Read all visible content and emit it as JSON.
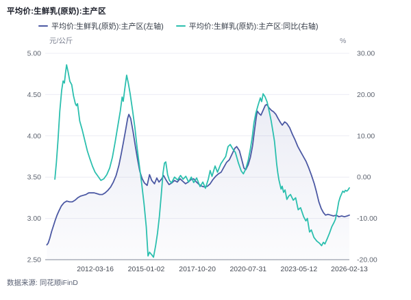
{
  "title": "平均价:生鲜乳(原奶):主产区",
  "legend": [
    {
      "label": "平均价:生鲜乳(原奶):主产区(左轴)",
      "color": "#4b58a3"
    },
    {
      "label": "平均价:生鲜乳(原奶):主产区:同比(右轴)",
      "color": "#2bbfae"
    }
  ],
  "footer": {
    "source_label": "数据来源: 同花顺iFinD"
  },
  "colors": {
    "price_line": "#4b58a3",
    "yoy_line": "#2bbfae",
    "grid_line": "#ececf4",
    "axis_line": "#a9adb9",
    "area_fill_top": "rgba(77,90,166,0.14)",
    "area_fill_bottom": "rgba(77,90,166,0.02)"
  },
  "chart_data": {
    "type": "line",
    "title": "平均价:生鲜乳(原奶):主产区",
    "grid": true,
    "legend_position": "top",
    "left_axis": {
      "unit": "元/公斤",
      "min": 2.5,
      "max": 5.0,
      "ticks": [
        "5.00",
        "4.50",
        "4.00",
        "3.50",
        "3.00",
        "2.50"
      ]
    },
    "right_axis": {
      "unit": "%",
      "min": -20,
      "max": 30,
      "ticks": [
        "30.00",
        "20.00",
        "10.00",
        "0.00",
        "-10.00",
        "-20.00"
      ]
    },
    "x_axis": {
      "domain": [
        2009.47,
        2026.12
      ],
      "ticks": [
        "2012-03-16",
        "2015-01-02",
        "2017-10-20",
        "2020-07-31",
        "2023-05-12",
        "2026-02-13"
      ],
      "tick_positions": [
        2012.21,
        2015.0,
        2017.8,
        2020.58,
        2023.36,
        2026.12
      ]
    },
    "series": [
      {
        "name": "平均价:生鲜乳(原奶):主产区(左轴)",
        "axis": "left",
        "color": "#4b58a3",
        "fill": true,
        "points": [
          [
            2009.56,
            2.68
          ],
          [
            2009.63,
            2.7
          ],
          [
            2009.72,
            2.76
          ],
          [
            2009.82,
            2.84
          ],
          [
            2009.92,
            2.91
          ],
          [
            2010.02,
            2.98
          ],
          [
            2010.12,
            3.04
          ],
          [
            2010.22,
            3.09
          ],
          [
            2010.35,
            3.15
          ],
          [
            2010.5,
            3.19
          ],
          [
            2010.65,
            3.21
          ],
          [
            2010.8,
            3.2
          ],
          [
            2010.95,
            3.2
          ],
          [
            2011.1,
            3.22
          ],
          [
            2011.25,
            3.25
          ],
          [
            2011.4,
            3.27
          ],
          [
            2011.55,
            3.28
          ],
          [
            2011.7,
            3.29
          ],
          [
            2011.85,
            3.31
          ],
          [
            2012.0,
            3.31
          ],
          [
            2012.15,
            3.31
          ],
          [
            2012.3,
            3.3
          ],
          [
            2012.45,
            3.29
          ],
          [
            2012.6,
            3.29
          ],
          [
            2012.75,
            3.31
          ],
          [
            2012.9,
            3.34
          ],
          [
            2013.05,
            3.38
          ],
          [
            2013.2,
            3.44
          ],
          [
            2013.35,
            3.52
          ],
          [
            2013.5,
            3.64
          ],
          [
            2013.62,
            3.77
          ],
          [
            2013.75,
            3.92
          ],
          [
            2013.88,
            4.08
          ],
          [
            2013.98,
            4.21
          ],
          [
            2014.05,
            4.26
          ],
          [
            2014.15,
            4.21
          ],
          [
            2014.28,
            4.05
          ],
          [
            2014.4,
            3.88
          ],
          [
            2014.52,
            3.72
          ],
          [
            2014.65,
            3.57
          ],
          [
            2014.78,
            3.48
          ],
          [
            2014.9,
            3.43
          ],
          [
            2015.05,
            3.4
          ],
          [
            2015.18,
            3.53
          ],
          [
            2015.3,
            3.46
          ],
          [
            2015.45,
            3.42
          ],
          [
            2015.58,
            3.49
          ],
          [
            2015.7,
            3.44
          ],
          [
            2015.85,
            3.48
          ],
          [
            2015.95,
            3.52
          ],
          [
            2016.1,
            3.46
          ],
          [
            2016.25,
            3.41
          ],
          [
            2016.4,
            3.43
          ],
          [
            2016.55,
            3.46
          ],
          [
            2016.7,
            3.44
          ],
          [
            2016.85,
            3.48
          ],
          [
            2017.0,
            3.45
          ],
          [
            2017.15,
            3.42
          ],
          [
            2017.3,
            3.44
          ],
          [
            2017.45,
            3.47
          ],
          [
            2017.6,
            3.48
          ],
          [
            2017.75,
            3.44
          ],
          [
            2017.9,
            3.41
          ],
          [
            2018.05,
            3.39
          ],
          [
            2018.2,
            3.38
          ],
          [
            2018.35,
            3.39
          ],
          [
            2018.5,
            3.42
          ],
          [
            2018.65,
            3.47
          ],
          [
            2018.8,
            3.51
          ],
          [
            2018.95,
            3.54
          ],
          [
            2019.1,
            3.56
          ],
          [
            2019.25,
            3.62
          ],
          [
            2019.4,
            3.68
          ],
          [
            2019.55,
            3.71
          ],
          [
            2019.7,
            3.78
          ],
          [
            2019.85,
            3.85
          ],
          [
            2019.95,
            3.87
          ],
          [
            2020.1,
            3.82
          ],
          [
            2020.22,
            3.72
          ],
          [
            2020.35,
            3.61
          ],
          [
            2020.45,
            3.59
          ],
          [
            2020.58,
            3.65
          ],
          [
            2020.7,
            3.74
          ],
          [
            2020.82,
            3.88
          ],
          [
            2020.92,
            4.05
          ],
          [
            2021.02,
            4.22
          ],
          [
            2021.08,
            4.3
          ],
          [
            2021.18,
            4.27
          ],
          [
            2021.28,
            4.25
          ],
          [
            2021.4,
            4.31
          ],
          [
            2021.52,
            4.37
          ],
          [
            2021.6,
            4.38
          ],
          [
            2021.72,
            4.34
          ],
          [
            2021.85,
            4.31
          ],
          [
            2021.98,
            4.29
          ],
          [
            2022.1,
            4.26
          ],
          [
            2022.22,
            4.21
          ],
          [
            2022.35,
            4.16
          ],
          [
            2022.45,
            4.13
          ],
          [
            2022.58,
            4.17
          ],
          [
            2022.7,
            4.15
          ],
          [
            2022.85,
            4.1
          ],
          [
            2023.0,
            4.02
          ],
          [
            2023.15,
            3.95
          ],
          [
            2023.3,
            3.87
          ],
          [
            2023.45,
            3.81
          ],
          [
            2023.6,
            3.75
          ],
          [
            2023.75,
            3.69
          ],
          [
            2023.9,
            3.61
          ],
          [
            2024.05,
            3.52
          ],
          [
            2024.2,
            3.42
          ],
          [
            2024.32,
            3.32
          ],
          [
            2024.45,
            3.2
          ],
          [
            2024.58,
            3.12
          ],
          [
            2024.7,
            3.07
          ],
          [
            2024.82,
            3.04
          ],
          [
            2024.95,
            3.05
          ],
          [
            2025.1,
            3.04
          ],
          [
            2025.25,
            3.03
          ],
          [
            2025.4,
            3.04
          ],
          [
            2025.55,
            3.02
          ],
          [
            2025.7,
            3.03
          ],
          [
            2025.85,
            3.02
          ],
          [
            2026.0,
            3.03
          ],
          [
            2026.12,
            3.04
          ]
        ]
      },
      {
        "name": "平均价:生鲜乳(原奶):主产区:同比(右轴)",
        "axis": "right",
        "color": "#2bbfae",
        "fill": false,
        "points": [
          [
            2010.0,
            -0.5
          ],
          [
            2010.08,
            3.5
          ],
          [
            2010.17,
            9.0
          ],
          [
            2010.27,
            16.0
          ],
          [
            2010.37,
            21.0
          ],
          [
            2010.45,
            23.3
          ],
          [
            2010.52,
            22.8
          ],
          [
            2010.58,
            25.2
          ],
          [
            2010.64,
            27.2
          ],
          [
            2010.72,
            25.6
          ],
          [
            2010.82,
            23.2
          ],
          [
            2010.92,
            22.4
          ],
          [
            2011.02,
            19.7
          ],
          [
            2011.12,
            17.8
          ],
          [
            2011.18,
            17.3
          ],
          [
            2011.24,
            17.8
          ],
          [
            2011.36,
            13.6
          ],
          [
            2011.5,
            11.4
          ],
          [
            2011.64,
            8.8
          ],
          [
            2011.78,
            6.3
          ],
          [
            2011.92,
            4.4
          ],
          [
            2012.06,
            2.6
          ],
          [
            2012.2,
            1.2
          ],
          [
            2012.36,
            0.2
          ],
          [
            2012.52,
            -0.8
          ],
          [
            2012.68,
            -0.4
          ],
          [
            2012.84,
            0.6
          ],
          [
            2013.0,
            2.2
          ],
          [
            2013.15,
            4.8
          ],
          [
            2013.3,
            8.5
          ],
          [
            2013.45,
            12.5
          ],
          [
            2013.58,
            16.0
          ],
          [
            2013.68,
            19.4
          ],
          [
            2013.74,
            18.4
          ],
          [
            2013.84,
            21.8
          ],
          [
            2013.93,
            24.7
          ],
          [
            2014.02,
            22.8
          ],
          [
            2014.12,
            20.2
          ],
          [
            2014.25,
            16.2
          ],
          [
            2014.38,
            12.0
          ],
          [
            2014.5,
            7.2
          ],
          [
            2014.62,
            3.0
          ],
          [
            2014.75,
            -1.5
          ],
          [
            2014.88,
            -6.5
          ],
          [
            2015.0,
            -12.0
          ],
          [
            2015.1,
            -19.1
          ],
          [
            2015.18,
            -18.2
          ],
          [
            2015.3,
            -18.8
          ],
          [
            2015.4,
            -19.4
          ],
          [
            2015.52,
            -16.5
          ],
          [
            2015.62,
            -13.5
          ],
          [
            2015.72,
            -9.5
          ],
          [
            2015.82,
            -4.5
          ],
          [
            2015.92,
            1.0
          ],
          [
            2016.0,
            3.4
          ],
          [
            2016.07,
            3.7
          ],
          [
            2016.17,
            0.6
          ],
          [
            2016.27,
            -0.8
          ],
          [
            2016.38,
            -1.4
          ],
          [
            2016.55,
            0.0
          ],
          [
            2016.72,
            -0.7
          ],
          [
            2016.88,
            0.4
          ],
          [
            2017.02,
            -0.5
          ],
          [
            2017.17,
            0.2
          ],
          [
            2017.32,
            -1.2
          ],
          [
            2017.47,
            0.0
          ],
          [
            2017.6,
            -1.3
          ],
          [
            2017.76,
            -0.2
          ],
          [
            2017.95,
            -2.3
          ],
          [
            2018.1,
            -1.2
          ],
          [
            2018.24,
            -2.7
          ],
          [
            2018.4,
            -0.5
          ],
          [
            2018.5,
            1.6
          ],
          [
            2018.6,
            0.2
          ],
          [
            2018.77,
            2.7
          ],
          [
            2018.9,
            1.2
          ],
          [
            2019.08,
            3.2
          ],
          [
            2019.2,
            4.0
          ],
          [
            2019.35,
            5.0
          ],
          [
            2019.48,
            7.4
          ],
          [
            2019.6,
            7.9
          ],
          [
            2019.74,
            6.8
          ],
          [
            2019.88,
            6.0
          ],
          [
            2020.05,
            3.4
          ],
          [
            2020.2,
            1.5
          ],
          [
            2020.32,
            0.8
          ],
          [
            2020.45,
            2.0
          ],
          [
            2020.58,
            4.0
          ],
          [
            2020.7,
            6.8
          ],
          [
            2020.8,
            9.5
          ],
          [
            2020.9,
            13.2
          ],
          [
            2021.0,
            15.5
          ],
          [
            2021.12,
            17.4
          ],
          [
            2021.25,
            19.2
          ],
          [
            2021.32,
            18.3
          ],
          [
            2021.4,
            20.2
          ],
          [
            2021.5,
            19.5
          ],
          [
            2021.62,
            18.2
          ],
          [
            2021.74,
            15.8
          ],
          [
            2021.84,
            13.6
          ],
          [
            2021.94,
            11.0
          ],
          [
            2022.02,
            8.7
          ],
          [
            2022.08,
            6.0
          ],
          [
            2022.14,
            3.2
          ],
          [
            2022.2,
            1.1
          ],
          [
            2022.26,
            -0.6
          ],
          [
            2022.38,
            -2.9
          ],
          [
            2022.44,
            -2.2
          ],
          [
            2022.52,
            -3.7
          ],
          [
            2022.6,
            -3.1
          ],
          [
            2022.7,
            -5.4
          ],
          [
            2022.8,
            -4.6
          ],
          [
            2022.9,
            -4.2
          ],
          [
            2023.05,
            -5.6
          ],
          [
            2023.18,
            -5.0
          ],
          [
            2023.32,
            -7.9
          ],
          [
            2023.45,
            -7.4
          ],
          [
            2023.62,
            -9.6
          ],
          [
            2023.74,
            -10.6
          ],
          [
            2023.82,
            -10.0
          ],
          [
            2023.94,
            -13.3
          ],
          [
            2024.04,
            -12.8
          ],
          [
            2024.18,
            -14.6
          ],
          [
            2024.34,
            -15.5
          ],
          [
            2024.48,
            -16.0
          ],
          [
            2024.6,
            -16.6
          ],
          [
            2024.7,
            -15.8
          ],
          [
            2024.78,
            -16.2
          ],
          [
            2024.9,
            -15.0
          ],
          [
            2025.04,
            -13.5
          ],
          [
            2025.16,
            -12.0
          ],
          [
            2025.28,
            -11.0
          ],
          [
            2025.36,
            -10.2
          ],
          [
            2025.46,
            -8.0
          ],
          [
            2025.54,
            -6.0
          ],
          [
            2025.62,
            -4.8
          ],
          [
            2025.7,
            -4.0
          ],
          [
            2025.76,
            -3.4
          ],
          [
            2025.84,
            -3.7
          ],
          [
            2025.9,
            -3.2
          ],
          [
            2025.98,
            -3.4
          ],
          [
            2026.05,
            -3.1
          ],
          [
            2026.12,
            -2.6
          ]
        ]
      }
    ]
  }
}
